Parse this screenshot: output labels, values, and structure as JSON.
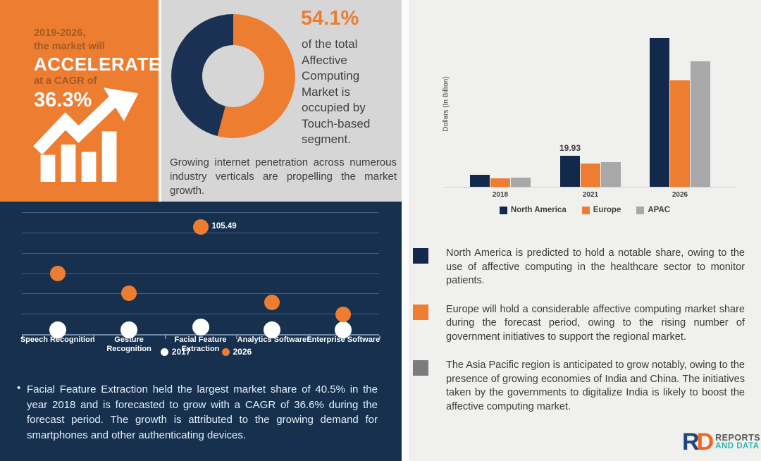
{
  "colors": {
    "orange": "#ED7D31",
    "navy_panel": "#16304E",
    "navy_dark": "#13294B",
    "donut_navy": "#1B3153",
    "gray_box": "#D6D6D6",
    "right_bg": "#F0F0EE",
    "bar_gray": "#A8A8A8",
    "bullet_gray": "#7C7C7C",
    "logo_teal": "#2EB5AC",
    "logo_gray": "#58595B"
  },
  "promo": {
    "period": "2019-2026,",
    "line2": "the market will",
    "emphasis": "ACCELERATE",
    "line3": "at a CAGR of",
    "cagr": "36.3%"
  },
  "donut_panel": {
    "pct": "54.1%",
    "desc": "of the total Affective Computing Market is occupied by Touch-based segment.",
    "note": "Growing internet penetration across numerous industry verticals are propelling the market growth."
  },
  "dot_panel": {
    "bullet_marker": "•",
    "bullet": "Facial Feature Extraction held the largest market share of 40.5% in the year 2018 and is forecasted to grow with a CAGR of 36.6% during the forecast period. The growth is attributed to the growing demand for smartphones and other authenticating devices."
  },
  "region_bullets": [
    {
      "marker_color": "#13294B",
      "text": "North America is predicted to hold a notable share, owing to the use of affective computing in the healthcare sector to monitor patients."
    },
    {
      "marker_color": "#ED7D31",
      "text": "Europe will hold a considerable affective computing market share during the forecast period, owing to the rising number of government initiatives to support the regional market."
    },
    {
      "marker_color": "#7C7C7C",
      "text": "The Asia Pacific region is anticipated to grow notably, owing to the presence of growing economies of India and China. The initiatives taken by the governments to digitalize India is likely to boost the affective computing market."
    }
  ],
  "logo": {
    "mark_r": "R",
    "mark_d": "D",
    "line1": "REPORTS",
    "line2": "AND DATA"
  },
  "chart_data": [
    {
      "id": "touch-based-share-donut",
      "type": "pie",
      "labels": [
        "Touch-based segment",
        "Rest of market"
      ],
      "values": [
        54.1,
        45.9
      ],
      "colors": [
        "#ED7D31",
        "#1B3153"
      ],
      "title": "54.1% of the total Affective Computing Market is occupied by Touch-based segment."
    },
    {
      "id": "technology-dot-plot",
      "type": "scatter",
      "categories": [
        "Speech Recognition",
        "Gesture Recognition",
        "Facial Feature Extraction",
        "Analytics Software",
        "Enterprise Software"
      ],
      "series": [
        {
          "name": "2017",
          "color": "#FFFFFF",
          "values": [
            4,
            4,
            7,
            4,
            4
          ]
        },
        {
          "name": "2026",
          "color": "#ED7D31",
          "values": [
            60,
            40.5,
            105.49,
            31,
            19.5
          ]
        }
      ],
      "ylim": [
        0,
        120
      ],
      "grid_step": 20,
      "grid": true,
      "legend_position": "bottom",
      "annotation": {
        "text": "105.49",
        "category_index": 2,
        "series": "2026"
      }
    },
    {
      "id": "regional-market-bars",
      "type": "bar",
      "categories": [
        "2018",
        "2021",
        "2026"
      ],
      "series": [
        {
          "name": "North America",
          "color": "#13294B",
          "values": [
            7.7,
            19.93,
            95.4
          ]
        },
        {
          "name": "Europe",
          "color": "#ED7D31",
          "values": [
            5.4,
            14.8,
            68.3
          ]
        },
        {
          "name": "APAC",
          "color": "#A8A8A8",
          "values": [
            5.9,
            16.0,
            80.6
          ]
        }
      ],
      "ylabel": "Dollars (In Billion)",
      "ylim": [
        0,
        120
      ],
      "grid": false,
      "legend_position": "bottom",
      "data_label": {
        "text": "19.93",
        "category_index": 1,
        "series": "North America"
      }
    }
  ]
}
